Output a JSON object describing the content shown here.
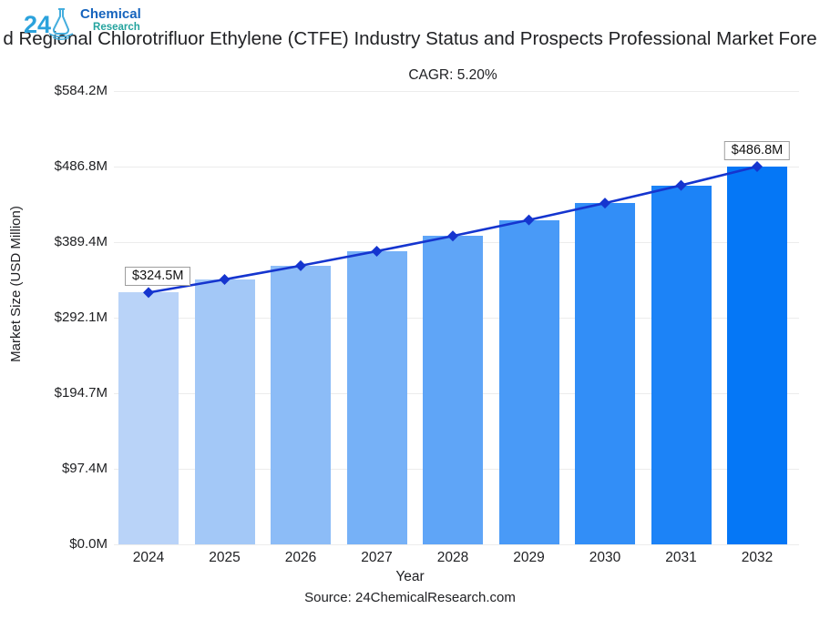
{
  "logo": {
    "number": "24",
    "word_top": "Chemical",
    "word_bottom": "Research",
    "number_color": "#2ba2dc",
    "word_top_color": "#1563bd",
    "word_bottom_color": "#23a39e",
    "flask_color": "#45aede"
  },
  "header": {
    "title": "d Regional Chlorotrifluor Ethylene (CTFE) Industry Status and Prospects Professional Market Fore",
    "subtitle": "CAGR: 5.20%"
  },
  "footer": {
    "source": "Source: 24ChemicalResearch.com"
  },
  "chart_data": {
    "type": "bar",
    "title": "d Regional Chlorotrifluor Ethylene (CTFE) Industry Status and Prospects Professional Market Fore",
    "subtitle": "CAGR: 5.20%",
    "xlabel": "Year",
    "ylabel": "Market Size (USD Million)",
    "categories": [
      "2024",
      "2025",
      "2026",
      "2027",
      "2028",
      "2029",
      "2030",
      "2031",
      "2032"
    ],
    "values": [
      324.5,
      341.4,
      359.1,
      377.8,
      397.4,
      418.1,
      439.8,
      462.7,
      486.8
    ],
    "line_overlay": true,
    "ylim": [
      0,
      584.2
    ],
    "y_ticks": {
      "values": [
        0,
        97.4,
        194.7,
        292.1,
        389.4,
        486.8,
        584.2
      ],
      "labels": [
        "$0.0M",
        "$97.4M",
        "$194.7M",
        "$292.1M",
        "$389.4M",
        "$486.8M",
        "$584.2M"
      ]
    },
    "annotations": [
      {
        "category": "2024",
        "text": "$324.5M",
        "align": "left"
      },
      {
        "category": "2032",
        "text": "$486.8M",
        "align": "center"
      }
    ],
    "bar_colors": [
      "#b9d3f8",
      "#a3c8f7",
      "#8cbcf7",
      "#76b1f7",
      "#5fa5f7",
      "#499af7",
      "#328ef7",
      "#1c83f7",
      "#0577f6"
    ],
    "line_color": "#1535cf",
    "grid": true,
    "legend": "none"
  }
}
